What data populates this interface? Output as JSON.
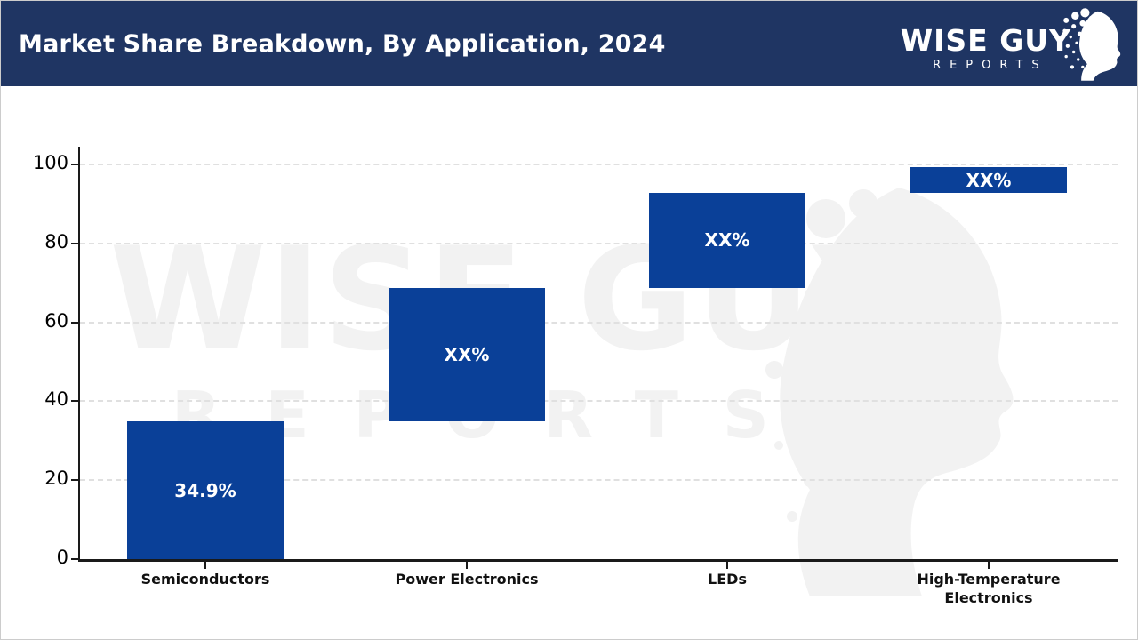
{
  "header": {
    "title": "Market Share Breakdown, By Application, 2024",
    "background": "#1f3563",
    "text_color": "#ffffff",
    "logo": {
      "name": "WISE GUY",
      "sub": "REPORTS"
    }
  },
  "watermark": {
    "line1": "WISE GUY",
    "line2": "REPORTS",
    "color": "#f2f2f2"
  },
  "chart_data": {
    "type": "bar",
    "subtype": "floating-waterfall",
    "title": "Market Share Breakdown, By Application, 2024",
    "categories": [
      "Semiconductors",
      "Power Electronics",
      "LEDs",
      "High-Temperature Electronics"
    ],
    "segments": [
      {
        "category": "Semiconductors",
        "start": 0,
        "end": 34.9,
        "label": "34.9%"
      },
      {
        "category": "Power Electronics",
        "start": 34.9,
        "end": 68.8,
        "label": "XX%"
      },
      {
        "category": "LEDs",
        "start": 68.8,
        "end": 92.7,
        "label": "XX%"
      },
      {
        "category": "High-Temperature Electronics",
        "start": 92.7,
        "end": 99.4,
        "label": "XX%"
      }
    ],
    "ylim": [
      0,
      100
    ],
    "yticks": [
      0,
      20,
      40,
      60,
      80,
      100
    ],
    "xlabel": "",
    "ylabel": "",
    "grid": "horizontal-dashed",
    "legend": "none",
    "bar_color": "#0a4098",
    "bar_label_color": "#ffffff",
    "axis_color": "#1a1a1a",
    "gridline_color": "#e0e0e0"
  }
}
